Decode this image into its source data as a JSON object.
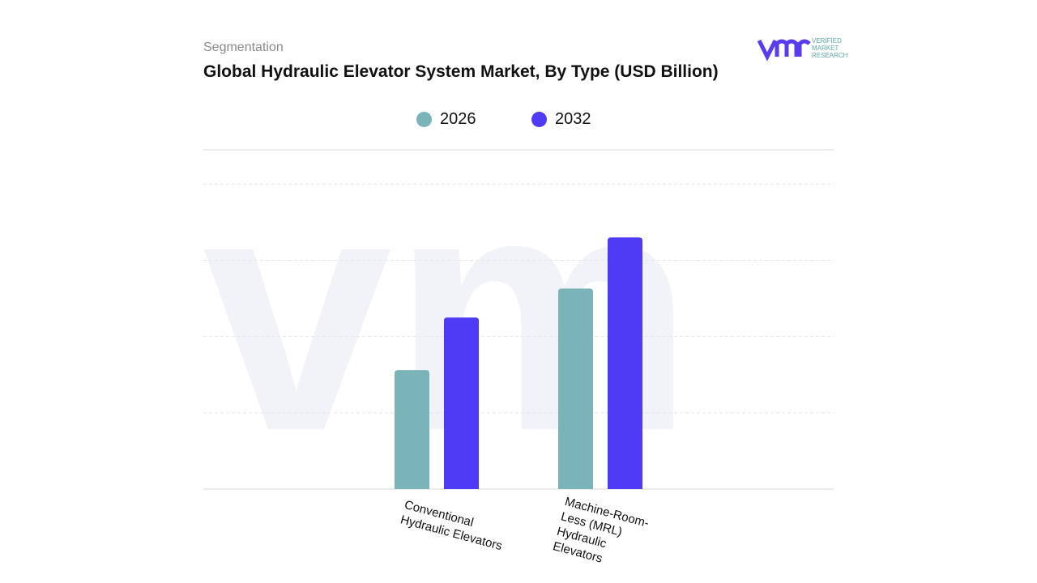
{
  "header": {
    "segment_label": "Segmentation",
    "title": "Global Hydraulic Elevator System Market, By Type (USD Billion)"
  },
  "logo": {
    "text_lines": [
      "VERIFIED",
      "MARKET",
      "RESEARCH"
    ],
    "mark": "vmr"
  },
  "chart_data": {
    "type": "bar",
    "title": "Global Hydraulic Elevator System Market, By Type (USD Billion)",
    "categories": [
      "Conventional Hydraulic Elevators",
      "Machine-Room-Less (MRL) Hydraulic Elevators"
    ],
    "series": [
      {
        "name": "2026",
        "color": "#7ab4b8",
        "values": [
          1.56,
          2.63
        ]
      },
      {
        "name": "2032",
        "color": "#4f3bf6",
        "values": [
          2.25,
          3.3
        ]
      }
    ],
    "ylim": [
      0,
      4.45
    ],
    "y_tick_labels_shown": false,
    "grid": true,
    "legend": "top-center",
    "xlabel": "",
    "ylabel": ""
  }
}
